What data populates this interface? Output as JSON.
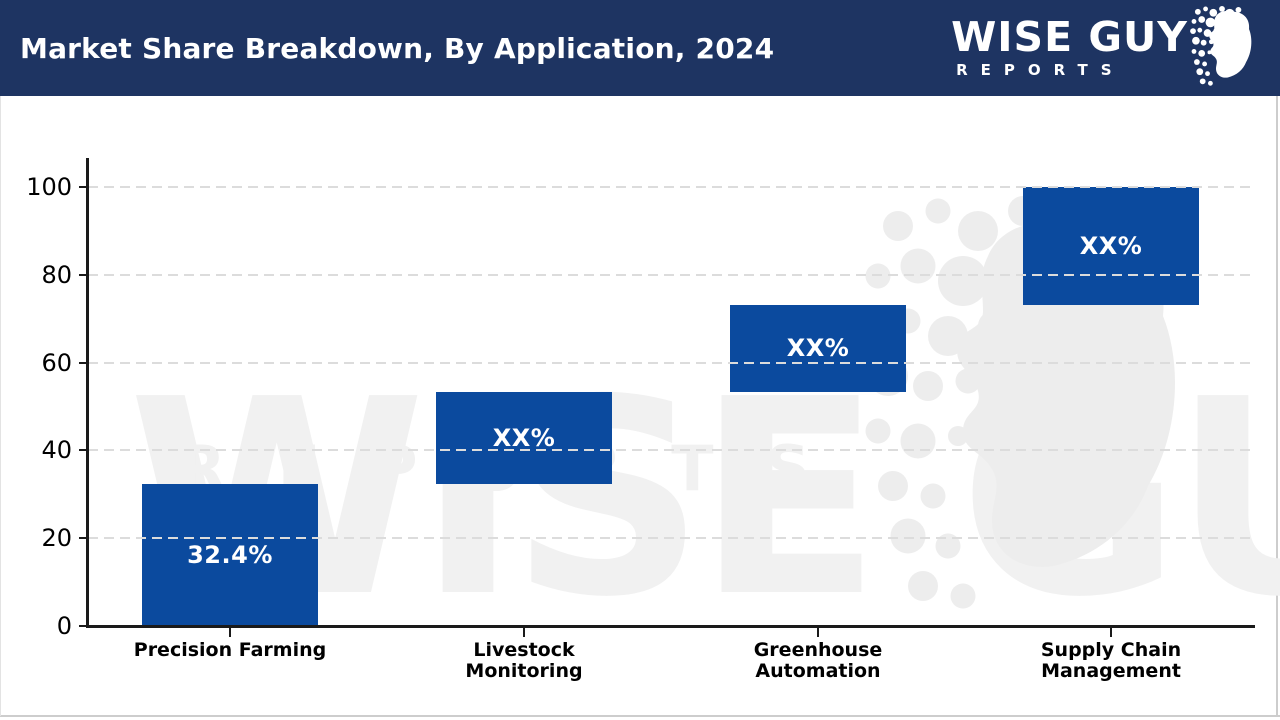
{
  "header": {
    "title": "Market Share Breakdown, By Application, 2024",
    "logo": {
      "line1": "WISE GUY",
      "line2": "REPORTS"
    }
  },
  "watermark": {
    "line1": "WISE GUY",
    "line2": "REPORTS"
  },
  "colors": {
    "header_bg": "#1e3462",
    "bar": "#0b4a9e",
    "axis": "#1a1a1a",
    "gridline": "#dcdcdc",
    "watermark": "#f1f1f1",
    "bar_label": "#ffffff",
    "title_text": "#ffffff"
  },
  "chart_data": {
    "type": "bar",
    "subtype": "waterfall",
    "title": "Market Share Breakdown, By Application, 2024",
    "categories": [
      "Precision Farming",
      "Livestock Monitoring",
      "Greenhouse Automation",
      "Supply Chain Management"
    ],
    "categories_lines": [
      [
        "Precision Farming"
      ],
      [
        "Livestock",
        "Monitoring"
      ],
      [
        "Greenhouse",
        "Automation"
      ],
      [
        "Supply Chain",
        "Management"
      ]
    ],
    "segments": [
      {
        "category": "Precision Farming",
        "start": 0,
        "end": 32.4,
        "label": "32.4%"
      },
      {
        "category": "Livestock Monitoring",
        "start": 32.4,
        "end": 53.3,
        "label": "XX%"
      },
      {
        "category": "Greenhouse Automation",
        "start": 53.3,
        "end": 73.2,
        "label": "XX%"
      },
      {
        "category": "Supply Chain Management",
        "start": 73.2,
        "end": 100,
        "label": "XX%"
      }
    ],
    "y_ticks": [
      0,
      20,
      40,
      60,
      80,
      100
    ],
    "ylim": [
      0,
      106.5
    ],
    "xlabel": "",
    "ylabel": "",
    "grid": "horizontal-dashed-over-bars",
    "legend": "none"
  }
}
